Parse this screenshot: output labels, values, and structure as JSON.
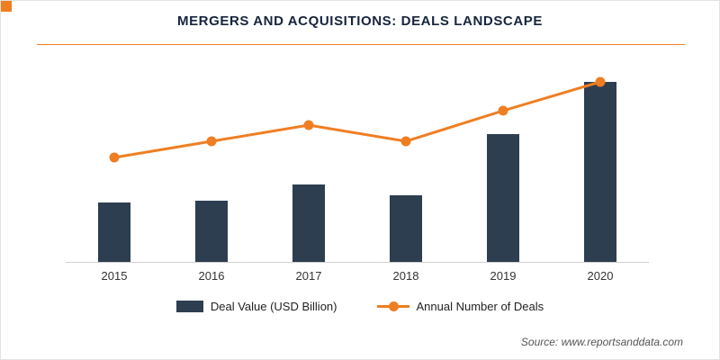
{
  "title": "MERGERS AND ACQUISITIONS: DEALS LANDSCAPE",
  "source": "Source: www.reportsanddata.com",
  "colors": {
    "bar": "#2d3e50",
    "line": "#ef7e22",
    "title": "#16243d",
    "axis": "#d0d0d0"
  },
  "legend": [
    {
      "label": "Deal Value (USD Billion)"
    },
    {
      "label": "Annual Number of Deals"
    }
  ],
  "chart_data": {
    "type": "bar+line",
    "title": "MERGERS AND ACQUISITIONS: DEALS LANDSCAPE",
    "categories": [
      "2015",
      "2016",
      "2017",
      "2018",
      "2019",
      "2020"
    ],
    "series": [
      {
        "name": "Deal Value (USD Billion)",
        "type": "bar",
        "values": [
          33,
          34,
          43,
          37,
          71,
          100
        ]
      },
      {
        "name": "Annual Number of Deals",
        "type": "line",
        "values": [
          58,
          67,
          76,
          67,
          84,
          100
        ]
      }
    ],
    "xlabel": "",
    "ylabel": "",
    "ylim": [
      0,
      110
    ],
    "grid": false,
    "legend_position": "bottom"
  }
}
